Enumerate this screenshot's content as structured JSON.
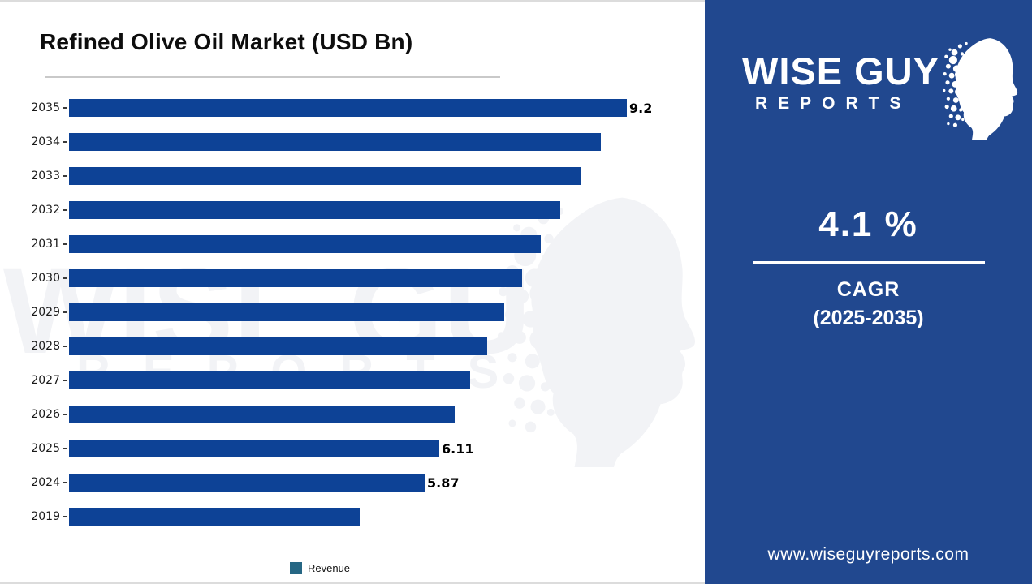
{
  "title": "Refined Olive Oil Market (USD Bn)",
  "chart_data": {
    "type": "bar",
    "orientation": "horizontal",
    "title": "Refined Olive Oil Market (USD Bn)",
    "xlabel": "",
    "ylabel": "",
    "xlim": [
      0,
      9.2
    ],
    "grid": false,
    "categories": [
      "2035",
      "2034",
      "2033",
      "2032",
      "2031",
      "2030",
      "2029",
      "2028",
      "2027",
      "2026",
      "2025",
      "2024",
      "2019"
    ],
    "series": [
      {
        "name": "Revenue",
        "values": [
          9.2,
          8.77,
          8.43,
          8.1,
          7.78,
          7.47,
          7.18,
          6.89,
          6.62,
          6.36,
          6.11,
          5.87,
          4.8
        ]
      }
    ],
    "bar_labels": [
      "9.2",
      "",
      "",
      "",
      "",
      "",
      "",
      "",
      "",
      "",
      "6.11",
      "5.87",
      ""
    ],
    "legend": {
      "label": "Revenue",
      "position": "bottom"
    },
    "colors": {
      "bar": "#0d4296",
      "legend_swatch": "#266784"
    }
  },
  "watermark": {
    "line1": "WISE GUY",
    "line2": "REPORTS"
  },
  "brand": {
    "wordmark_line1": "WISE GUY",
    "wordmark_line2": "REPORTS",
    "cagr_value": "4.1 %",
    "cagr_label": "CAGR",
    "cagr_range": "(2025-2035)",
    "website": "www.wiseguyreports.com",
    "colors": {
      "panel": "#21488f",
      "text": "#ffffff"
    }
  }
}
